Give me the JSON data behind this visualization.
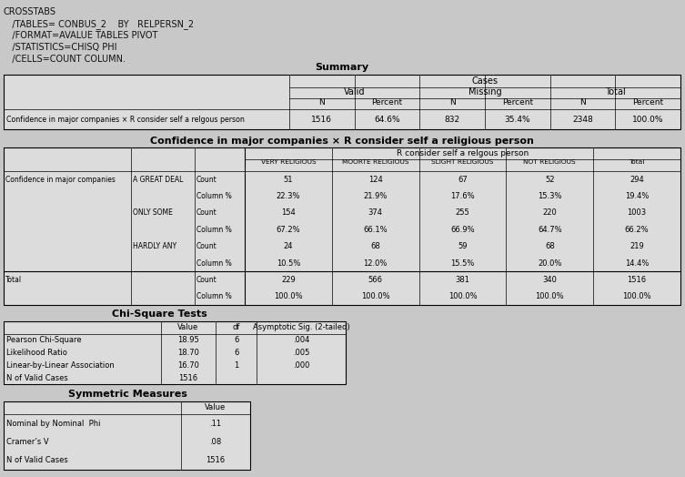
{
  "title_lines": [
    "CROSSTABS",
    "   /TABLES= CONBUS_2    BY   RELPERSN_2",
    "   /FORMAT=AVALUE TABLES PIVOT",
    "   /STATISTICS=CHISQ PHI",
    "   /CELLS=COUNT COLUMN."
  ],
  "summary_title": "Summary",
  "summary_cases": "Cases",
  "summary_header2": [
    "Valid",
    "Missing",
    "Total"
  ],
  "summary_header3": [
    "N",
    "Percent",
    "N",
    "Percent",
    "N",
    "Percent"
  ],
  "summary_row_label": "Confidence in major companies × R consider self a relgous person",
  "summary_row_data": [
    "1516",
    "64.6%",
    "832",
    "35.4%",
    "2348",
    "100.0%"
  ],
  "crosstab_title": "Confidence in major companies × R consider self a religious person",
  "col_header1": "R consider self a relgous person",
  "col_headers": [
    "VERY RELIGIOUS",
    "MOORTE RELIGIOUS",
    "SLIGHT RELIGIOUS",
    "NOT RELIGIOUS",
    "Total"
  ],
  "row_labels_c1": [
    "Confidence in major companies",
    "",
    "",
    "",
    "",
    "",
    "Total",
    ""
  ],
  "row_labels_c2": [
    "A GREAT DEAL",
    "",
    "ONLY SOME",
    "",
    "HARDLY ANY",
    "",
    "",
    ""
  ],
  "row_labels_c3": [
    "Count",
    "Column %",
    "Count",
    "Column %",
    "Count",
    "Column %",
    "Count",
    "Column %"
  ],
  "cell_data": [
    [
      "51",
      "124",
      "67",
      "52",
      "294"
    ],
    [
      "22.3%",
      "21.9%",
      "17.6%",
      "15.3%",
      "19.4%"
    ],
    [
      "154",
      "374",
      "255",
      "220",
      "1003"
    ],
    [
      "67.2%",
      "66.1%",
      "66.9%",
      "64.7%",
      "66.2%"
    ],
    [
      "24",
      "68",
      "59",
      "68",
      "219"
    ],
    [
      "10.5%",
      "12.0%",
      "15.5%",
      "20.0%",
      "14.4%"
    ],
    [
      "229",
      "566",
      "381",
      "340",
      "1516"
    ],
    [
      "100.0%",
      "100.0%",
      "100.0%",
      "100.0%",
      "100.0%"
    ]
  ],
  "chisq_title": "Chi-Square Tests",
  "chisq_headers": [
    "Value",
    "df",
    "Asymptotic Sig. (2-tailed)"
  ],
  "chisq_rows": [
    [
      "Pearson Chi-Square",
      "18.95",
      "6",
      ".004"
    ],
    [
      "Likelihood Ratio",
      "18.70",
      "6",
      ".005"
    ],
    [
      "Linear-by-Linear Association",
      "16.70",
      "1",
      ".000"
    ],
    [
      "N of Valid Cases",
      "1516",
      "",
      ""
    ]
  ],
  "sym_title": "Symmetric Measures",
  "sym_rows": [
    [
      "Nominal by Nominal  Phi",
      ".11"
    ],
    [
      "Cramer’s V",
      ".08"
    ],
    [
      "N of Valid Cases",
      "1516"
    ]
  ],
  "bg_color": "#c8c8c8",
  "table_bg": "#dcdcdc"
}
